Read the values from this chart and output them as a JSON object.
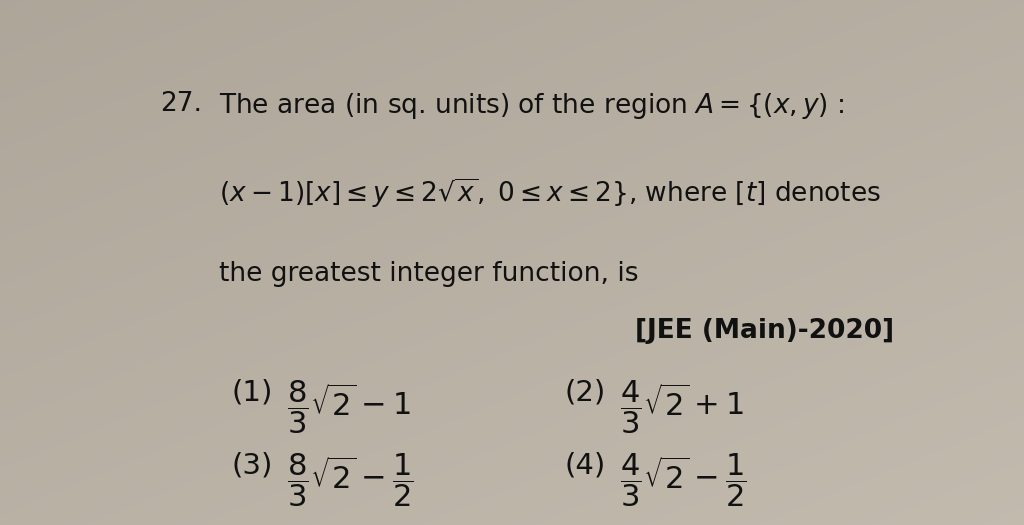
{
  "background_color_top": "#7a7068",
  "background_color_main": "#b8b0a5",
  "background_color_right": "#c8c2b8",
  "question_number": "27.",
  "line1": "The area (in sq. units) of the region $A = \\{(x, y)$ :",
  "line2": "$(x-1)[x] \\leq y \\leq 2\\sqrt{x},\\; 0 \\leq x \\leq 2\\}$, where $[t]$ denotes",
  "line3": "the greatest integer function, is",
  "source_tag": "[JEE (Main)-2020]",
  "opt1_label": "(1)",
  "opt1_expr": "$\\dfrac{8}{3}\\sqrt{2}-1$",
  "opt2_label": "(2)",
  "opt2_expr": "$\\dfrac{4}{3}\\sqrt{2}+1$",
  "opt3_label": "(3)",
  "opt3_expr": "$\\dfrac{8}{3}\\sqrt{2}-\\dfrac{1}{2}$",
  "opt4_label": "(4)",
  "opt4_expr": "$\\dfrac{4}{3}\\sqrt{2}-\\dfrac{1}{2}$",
  "text_color": "#111111",
  "fontsize_q": 19,
  "fontsize_opt": 21,
  "fontsize_src": 19
}
